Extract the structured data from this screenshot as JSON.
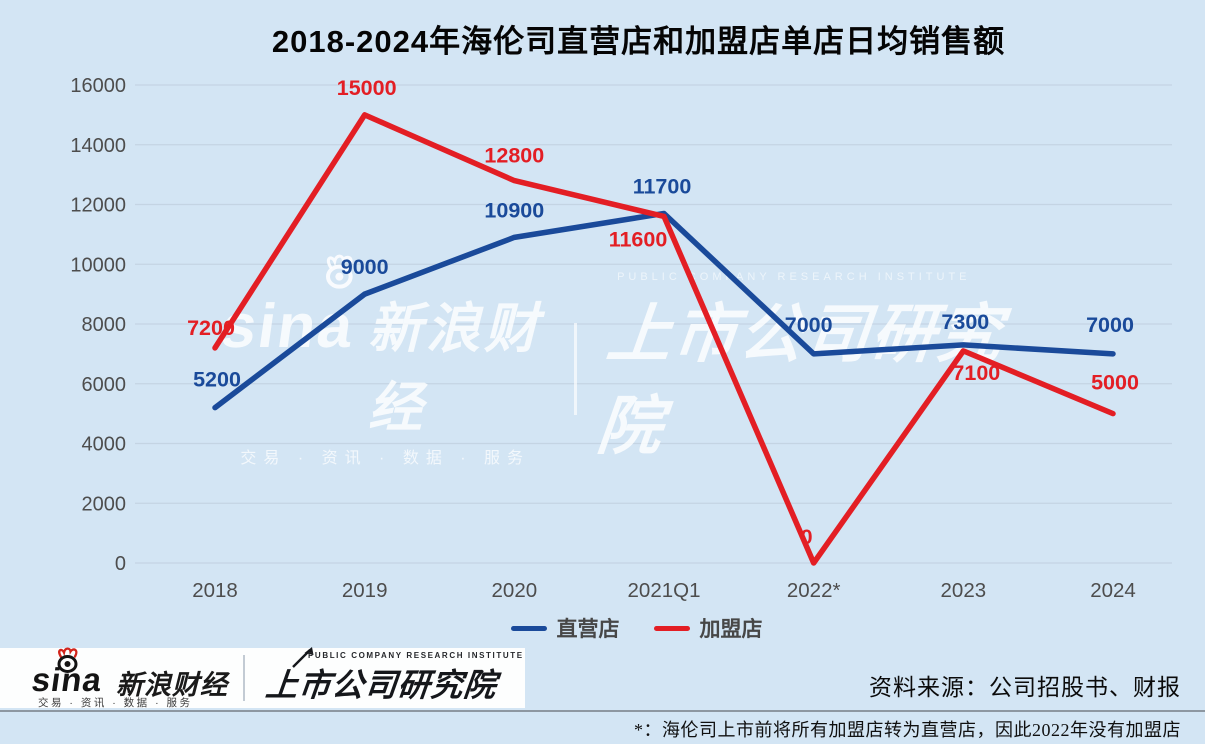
{
  "chart_data": {
    "type": "line",
    "title": "2018-2024年海伦司直营店和加盟店单店日均销售额",
    "xlabel": "",
    "ylabel": "",
    "categories": [
      "2018",
      "2019",
      "2020",
      "2021Q1",
      "2022*",
      "2023",
      "2024"
    ],
    "series": [
      {
        "name": "直营店",
        "color": "#1a4a9a",
        "values": [
          5200,
          9000,
          10900,
          11700,
          7000,
          7300,
          7000
        ],
        "label_offsets": [
          [
            2,
            -29
          ],
          [
            0,
            -28
          ],
          [
            0,
            -28
          ],
          [
            -2,
            -28
          ],
          [
            -5,
            -30
          ],
          [
            2,
            -24
          ],
          [
            -3,
            -30
          ]
        ]
      },
      {
        "name": "加盟店",
        "color": "#e31e24",
        "values": [
          7200,
          15000,
          12800,
          11600,
          0,
          7100,
          5000
        ],
        "label_offsets": [
          [
            -4,
            -21
          ],
          [
            2,
            -28
          ],
          [
            0,
            -26
          ],
          [
            -26,
            22
          ],
          [
            -7,
            -27
          ],
          [
            13,
            21
          ],
          [
            2,
            -32
          ]
        ]
      }
    ],
    "ylim": [
      0,
      16000
    ],
    "yticks": [
      0,
      2000,
      4000,
      6000,
      8000,
      10000,
      12000,
      14000,
      16000
    ],
    "grid": true,
    "legend_position": "bottom"
  },
  "watermark": {
    "sina_word": "sina",
    "sina_name": "新浪财经",
    "sina_tagline": "交易 · 资讯 · 数据 · 服务",
    "institute_subtitle": "PUBLIC COMPANY RESEARCH INSTITUTE",
    "institute_name": "上市公司研究院"
  },
  "footer": {
    "sina_word": "sina",
    "sina_name": "新浪财经",
    "sina_tagline": "交易 · 资讯 · 数据 · 服务",
    "institute_subtitle": "PUBLIC COMPANY RESEARCH INSTITUTE",
    "institute_name": "上市公司研究院",
    "source": "资料来源：公司招股书、财报",
    "footnote": "*：海伦司上市前将所有加盟店转为直营店，因此2022年没有加盟店"
  },
  "colors": {
    "background": "#d3e5f4",
    "blue": "#1a4a9a",
    "red": "#e31e24",
    "axis_text": "#4d4d4d",
    "grid": "#c4d4e3",
    "legend_text": "#474747",
    "footer_rule": "#8d97a1"
  }
}
